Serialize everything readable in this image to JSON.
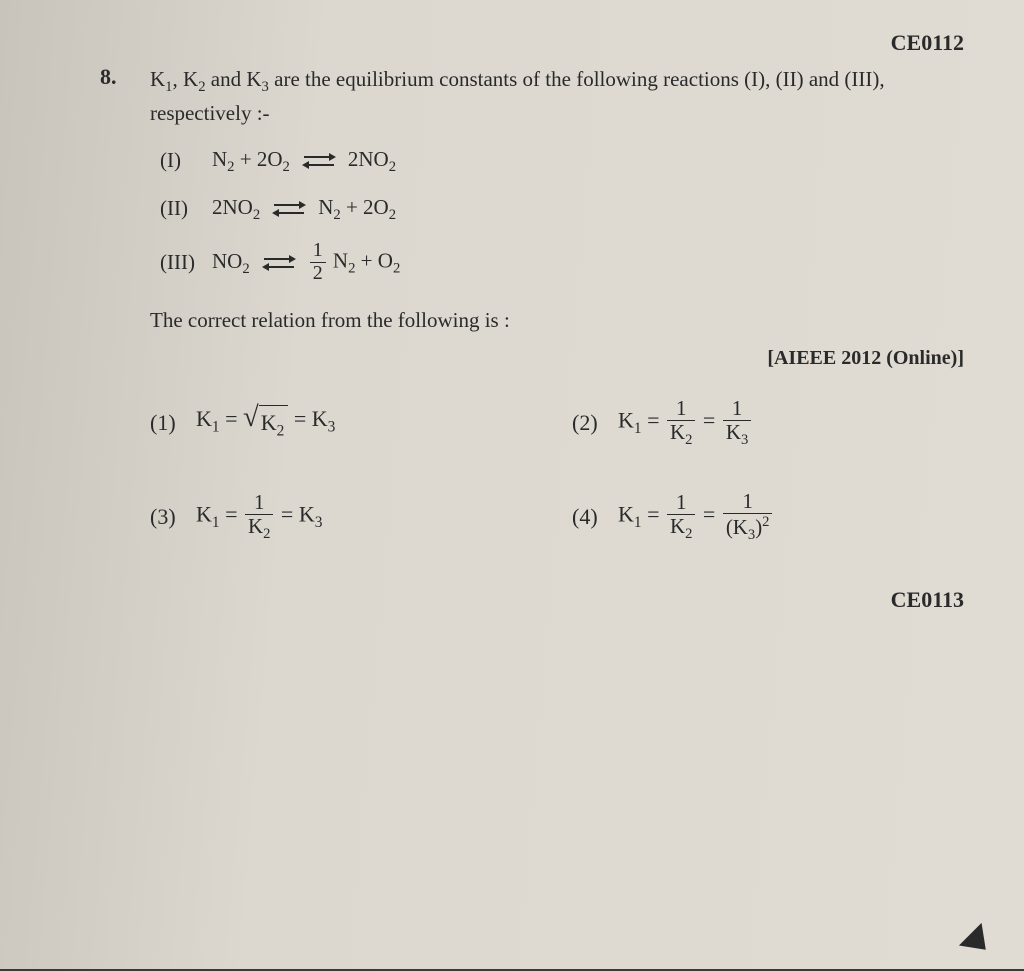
{
  "header_code": "CE0112",
  "question_number": "8.",
  "question_text_1": "K",
  "question_text_2": ", K",
  "question_text_3": " and K",
  "question_text_4": " are the equilibrium constants of the following reactions (I), (II) and (III), respectively :-",
  "reactions": {
    "r1": {
      "num": "(I)",
      "lhs_a": "N",
      "lhs_b": " + 2O",
      "rhs": "2NO"
    },
    "r2": {
      "num": "(II)",
      "lhs": "2NO",
      "rhs_a": "N",
      "rhs_b": " + 2O"
    },
    "r3": {
      "num": "(III)",
      "lhs": "NO",
      "rhs_a": "N",
      "rhs_b": " + O"
    }
  },
  "prompt": "The correct relation from the following is :",
  "source": "[AIEEE 2012 (Online)]",
  "options": {
    "o1": {
      "num": "(1)",
      "text": "K₁ = √K₂ = K₃"
    },
    "o2": {
      "num": "(2)"
    },
    "o3": {
      "num": "(3)"
    },
    "o4": {
      "num": "(4)"
    }
  },
  "footer_code": "CE0113",
  "frac_half_num": "1",
  "frac_half_den": "2",
  "k1": "K",
  "k2": "K",
  "k3": "K",
  "one": "1",
  "eq": " = ",
  "sq": "(K",
  "sq_close": ")",
  "sq_exp": "2"
}
